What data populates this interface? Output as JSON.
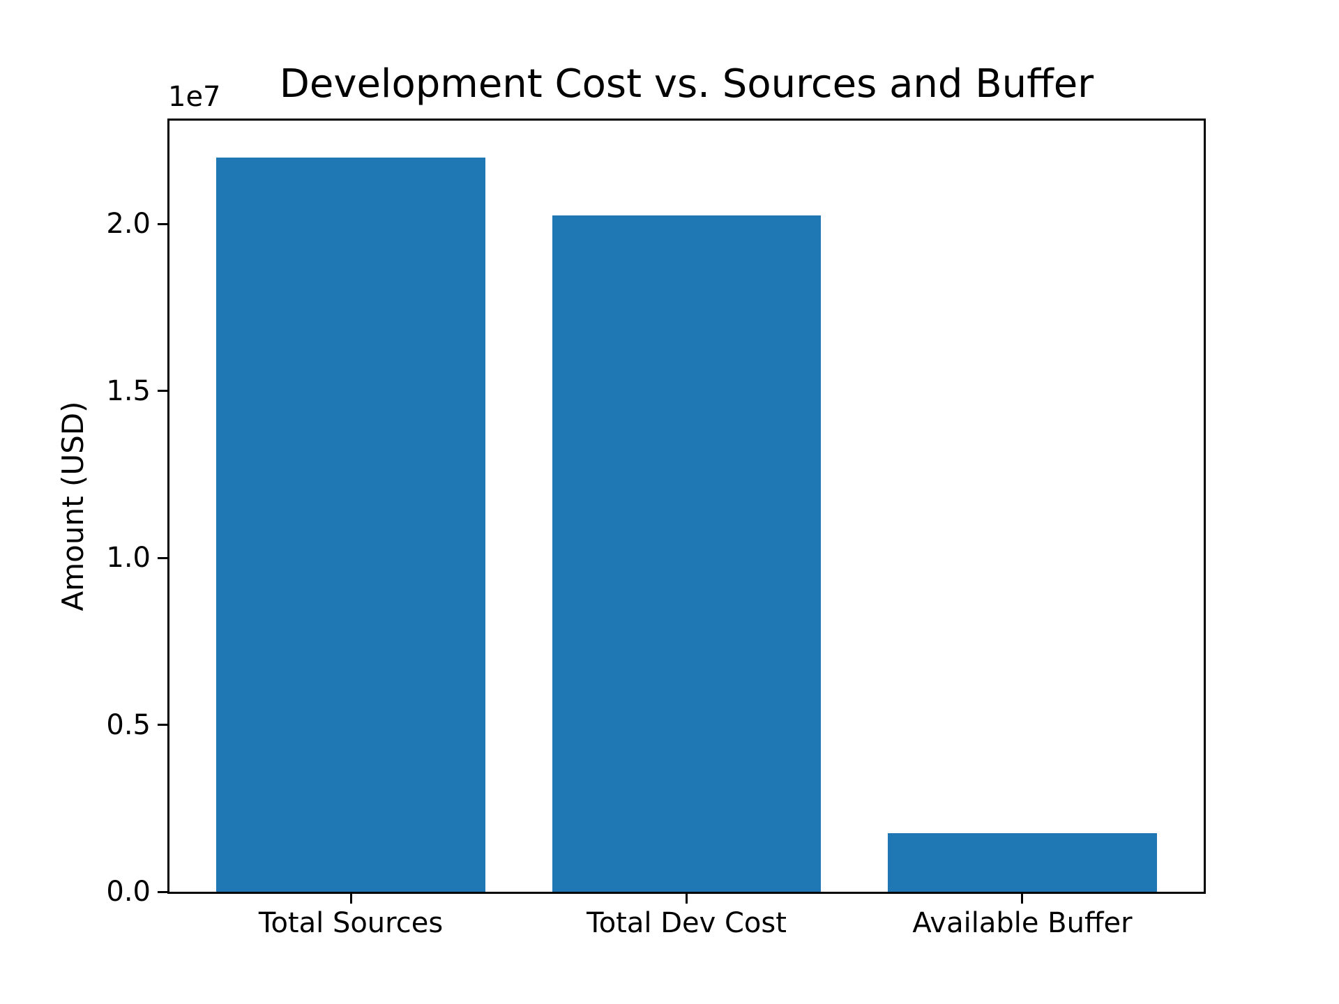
{
  "chart_data": {
    "type": "bar",
    "title": "Development Cost vs. Sources and Buffer",
    "xlabel": "",
    "ylabel": "Amount (USD)",
    "y_offset_label": "1e7",
    "categories": [
      "Total Sources",
      "Total Dev Cost",
      "Available Buffer"
    ],
    "values": [
      22000000,
      20250000,
      1750000
    ],
    "yticks": [
      0,
      5000000,
      10000000,
      15000000,
      20000000
    ],
    "ytick_labels": [
      "0.0",
      "0.5",
      "1.0",
      "1.5",
      "2.0"
    ],
    "ylim": [
      0,
      23100000
    ],
    "bar_color": "#1f77b4",
    "axis_color": "#000000",
    "background_color": "#ffffff",
    "grid": false,
    "legend": null,
    "bar_width_fraction": 0.8
  }
}
